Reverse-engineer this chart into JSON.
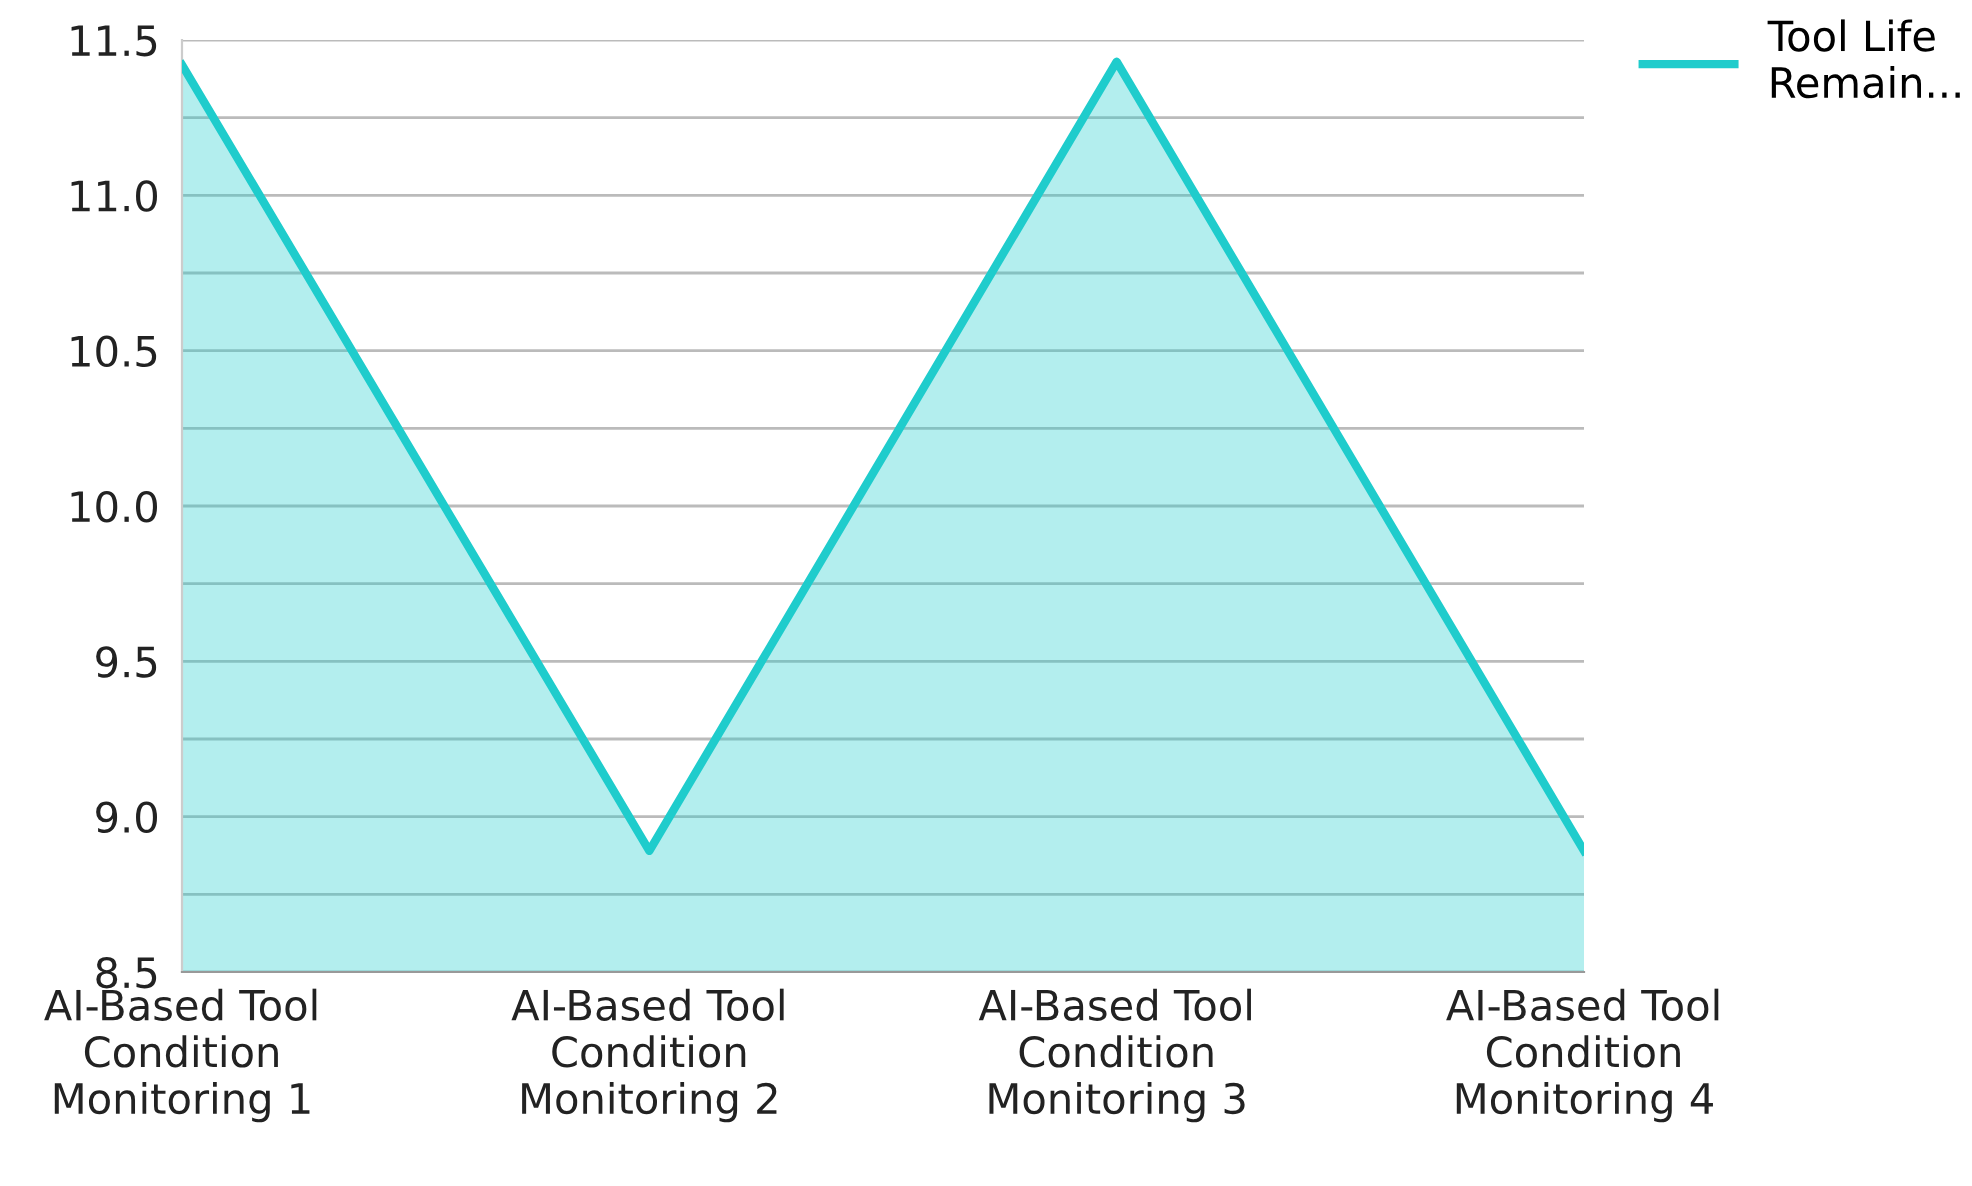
{
  "chart_data": {
    "type": "area",
    "categories": [
      "AI-Based Tool\nCondition\nMonitoring 1",
      "AI-Based Tool\nCondition\nMonitoring 2",
      "AI-Based Tool\nCondition\nMonitoring 3",
      "AI-Based Tool\nCondition\nMonitoring 4"
    ],
    "series": [
      {
        "name": "Tool Life\nRemain...",
        "color": "#1fcccc",
        "values": [
          11.42,
          8.89,
          11.43,
          8.89
        ]
      }
    ],
    "ylim": [
      8.5,
      11.5
    ],
    "yticks": [
      8.5,
      {
        "value": 8.75,
        "label": null
      },
      {
        "value": 9,
        "label": "9.0"
      },
      {
        "value": 9.25,
        "label": null
      },
      9.5,
      {
        "value": 9.75,
        "label": null
      },
      {
        "value": 10,
        "label": "10.0"
      },
      {
        "value": 10.25,
        "label": null
      },
      10.5,
      {
        "value": 10.75,
        "label": null
      },
      {
        "value": 11,
        "label": "11.0"
      },
      {
        "value": 11.25,
        "label": null
      },
      11.5
    ],
    "grid": "y",
    "legend": "top right",
    "marker": "none",
    "line_style": "solid"
  }
}
